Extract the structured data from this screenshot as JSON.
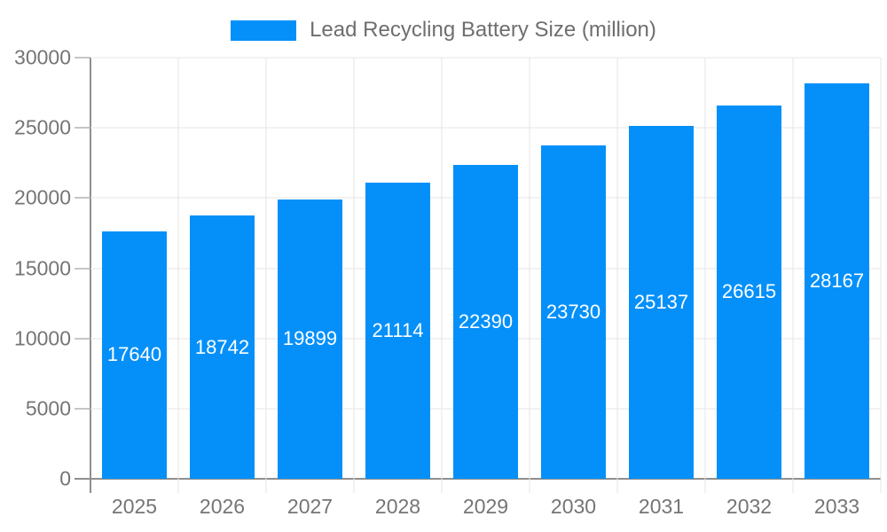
{
  "legend": {
    "label": "Lead Recycling Battery Size (million)"
  },
  "chart_data": {
    "type": "bar",
    "title": "Lead Recycling Battery Size (million)",
    "categories": [
      "2025",
      "2026",
      "2027",
      "2028",
      "2029",
      "2030",
      "2031",
      "2032",
      "2033"
    ],
    "values": [
      17640,
      18742,
      19899,
      21114,
      22390,
      23730,
      25137,
      26615,
      28167
    ],
    "series": [
      {
        "name": "Lead Recycling Battery Size (million)",
        "values": [
          17640,
          18742,
          19899,
          21114,
          22390,
          23730,
          25137,
          26615,
          28167
        ]
      }
    ],
    "xlabel": "",
    "ylabel": "",
    "ylim": [
      0,
      30000
    ],
    "ytick_step": 5000,
    "ytick_labels": [
      "0",
      "5000",
      "10000",
      "15000",
      "20000",
      "25000",
      "30000"
    ],
    "grid": true,
    "legend_position": "top",
    "colors": {
      "bar": "#0590F9",
      "bar_label": "#FFFFFF",
      "axis_text": "#757575",
      "legend_text": "#6E6E6E",
      "gridline": "#E6E6E6",
      "axis_line": "#8F8F8F"
    }
  }
}
